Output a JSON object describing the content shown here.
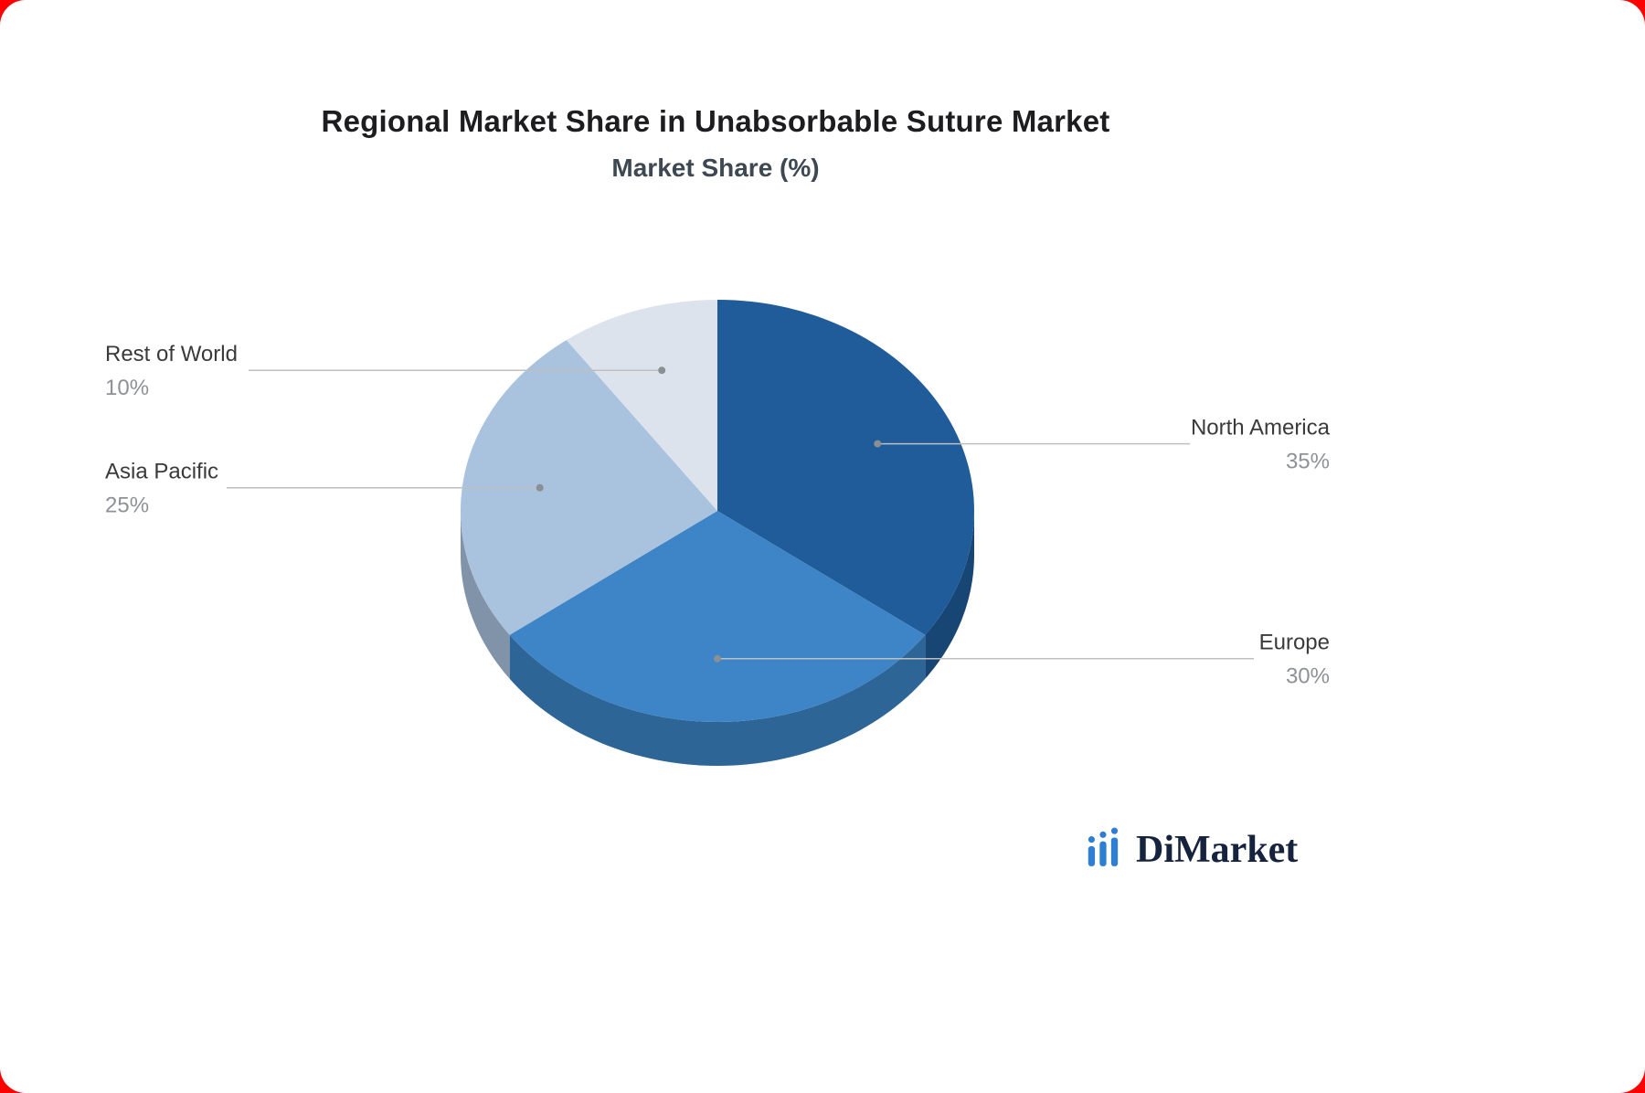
{
  "header": {
    "title": "Regional Market Share in Unabsorbable Suture Market",
    "subtitle": "Market Share (%)"
  },
  "chart_data": {
    "type": "pie",
    "title": "Regional Market Share in Unabsorbable Suture Market",
    "subtitle": "Market Share (%)",
    "unit": "%",
    "style": "3d-pie",
    "direction": "clockwise",
    "start_angle_deg": 0,
    "legend_position": "none",
    "label_style": "outside-leader-lines",
    "slices": [
      {
        "label": "North America",
        "value": 35,
        "display_value": "35%",
        "color": "#1F5C99"
      },
      {
        "label": "Europe",
        "value": 30,
        "display_value": "30%",
        "color": "#3D85C7"
      },
      {
        "label": "Asia Pacific",
        "value": 25,
        "display_value": "25%",
        "color": "#A9C2DE"
      },
      {
        "label": "Rest of World",
        "value": 10,
        "display_value": "10%",
        "color": "#DCE3EC"
      }
    ]
  },
  "branding": {
    "logo_text": "DiMarket",
    "logo_icon": "bar-chart-icon",
    "text_color": "#16233E",
    "icon_color": "#2E7FD4"
  },
  "frame": {
    "border_color": "#FE0000",
    "background": "#FFFFFF"
  }
}
